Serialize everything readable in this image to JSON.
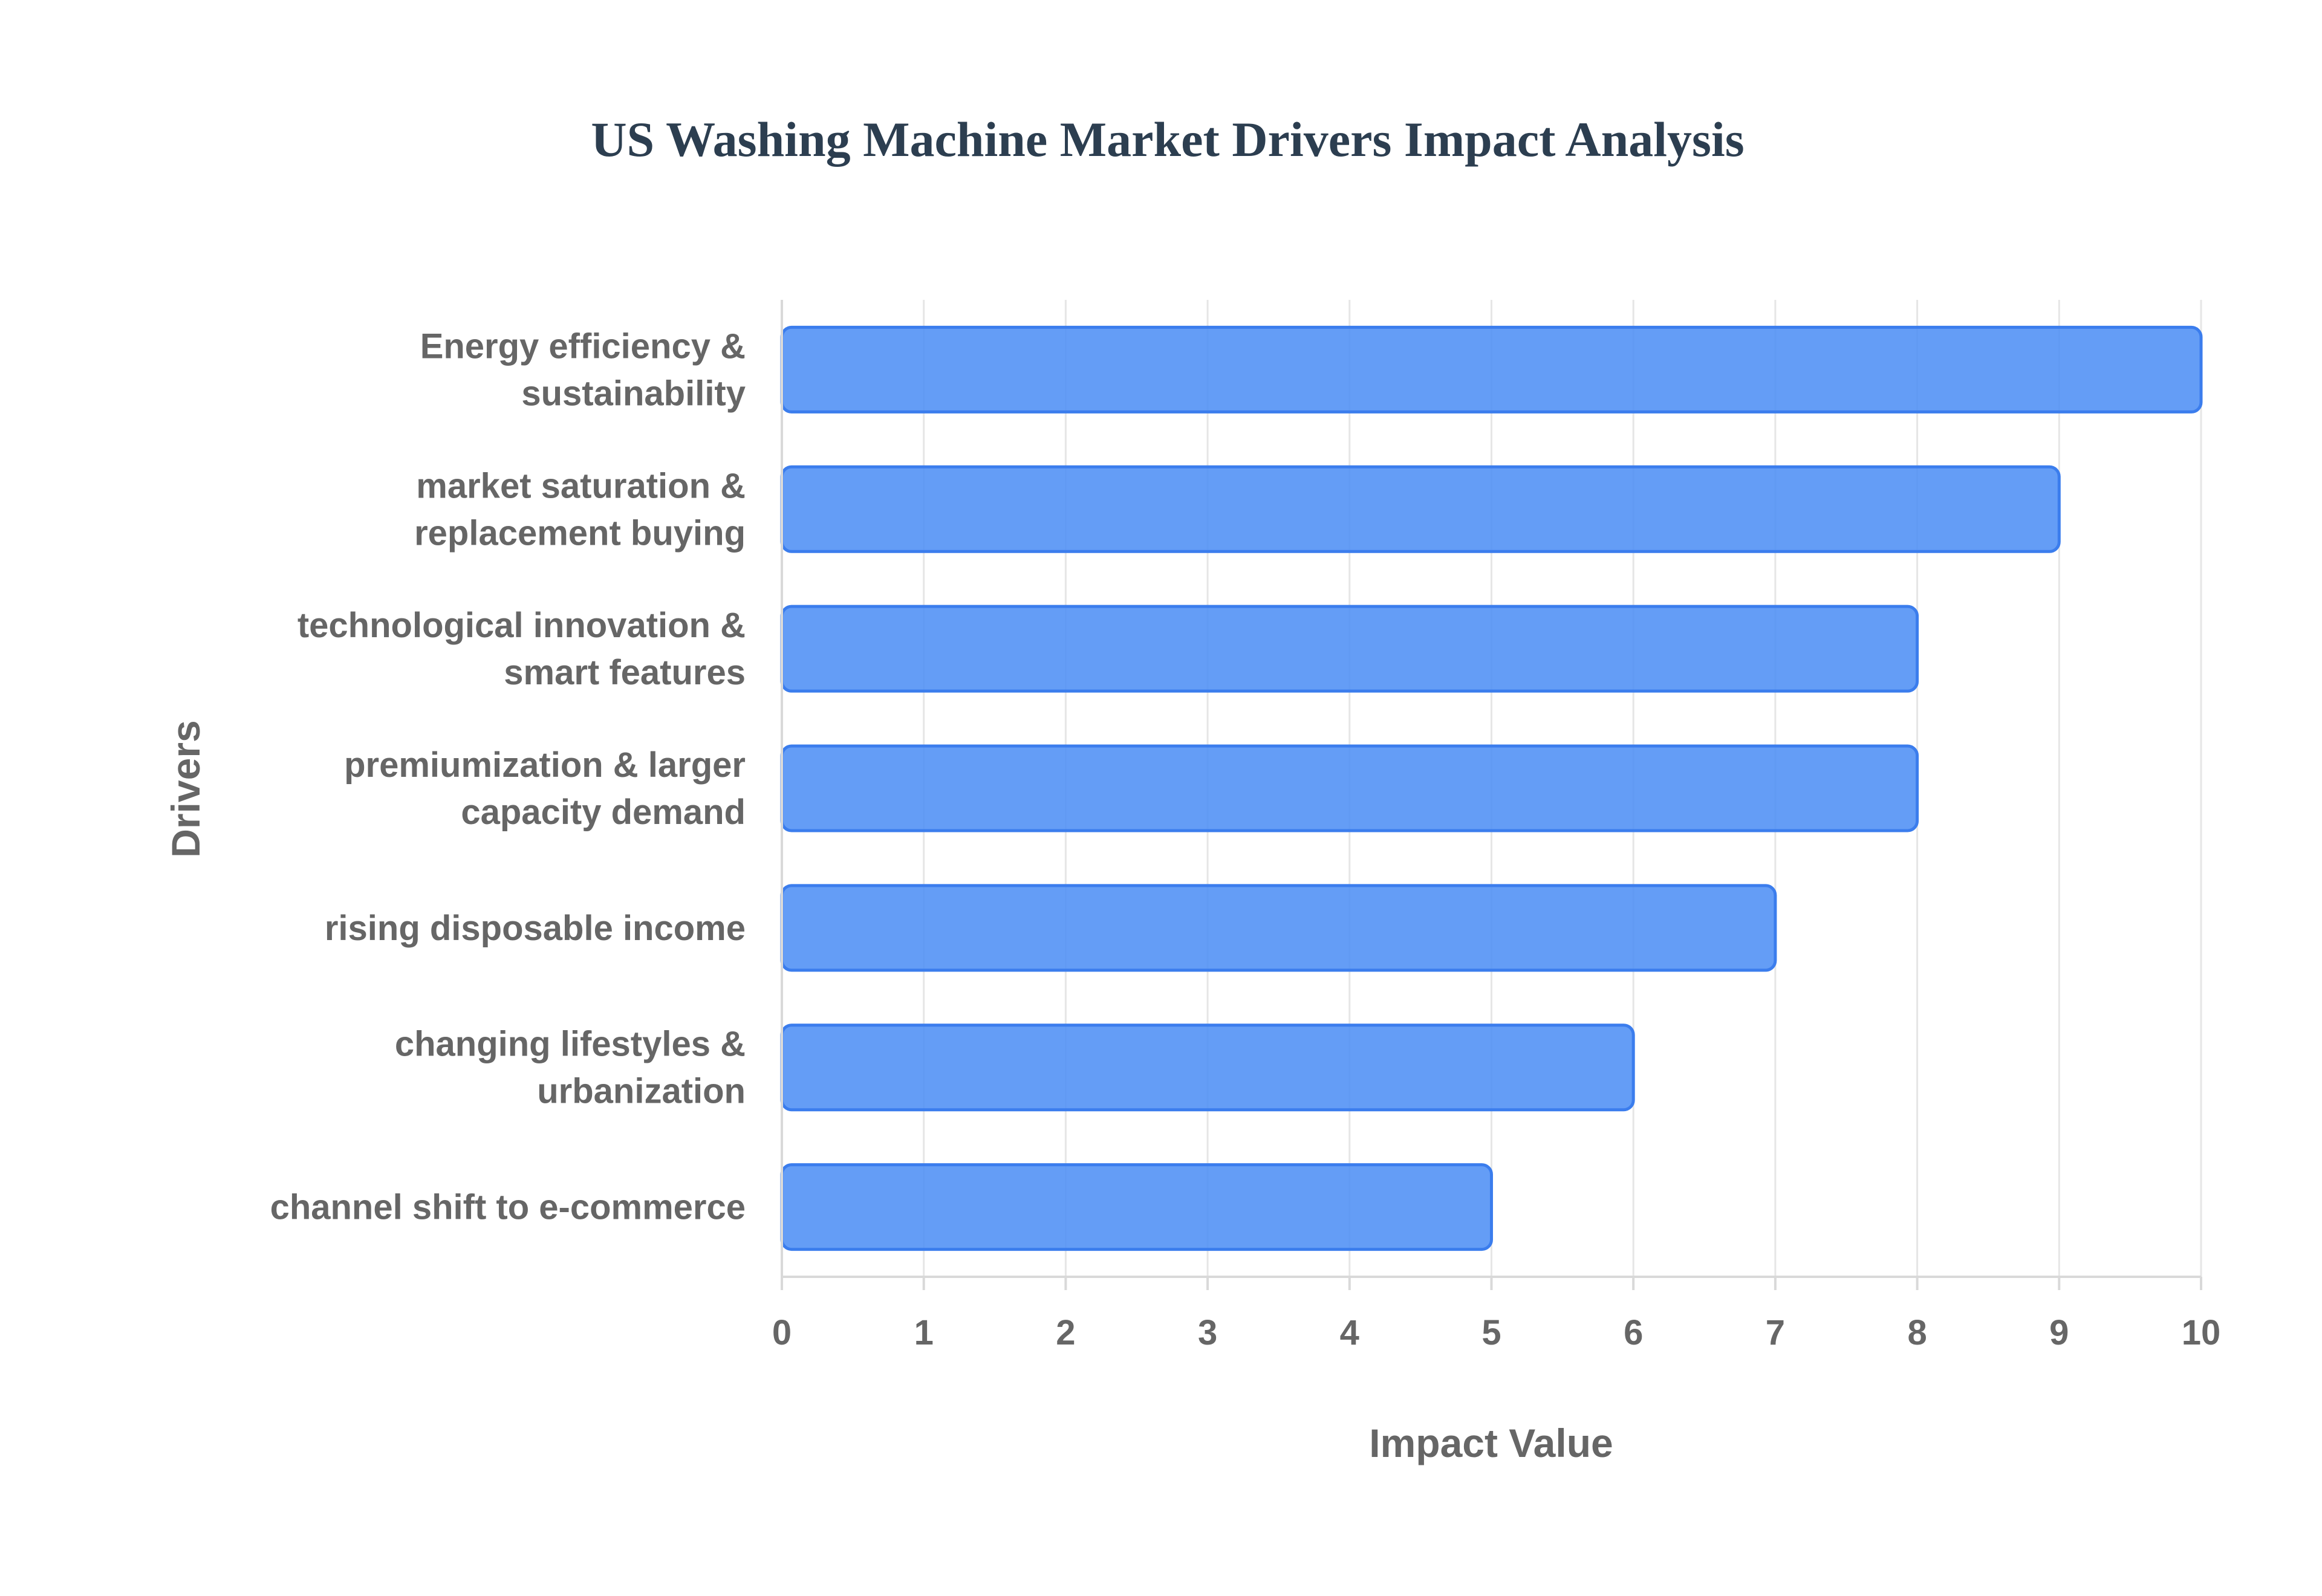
{
  "chart_data": {
    "type": "bar",
    "orientation": "horizontal",
    "title": "US Washing Machine Market Drivers Impact Analysis",
    "xlabel": "Impact Value",
    "ylabel": "Drivers",
    "xlim": [
      0,
      10
    ],
    "x_ticks": [
      "0",
      "1",
      "2",
      "3",
      "4",
      "5",
      "6",
      "7",
      "8",
      "9",
      "10"
    ],
    "grid": true,
    "legend": "none",
    "bar_color": "#4f8ff5",
    "bar_edge_color": "#3b7ded",
    "categories": [
      [
        "Energy efficiency &",
        "sustainability"
      ],
      [
        "market saturation &",
        "replacement buying"
      ],
      [
        "technological innovation &",
        "smart features"
      ],
      [
        "premiumization & larger",
        "capacity demand"
      ],
      [
        "rising disposable income"
      ],
      [
        "changing lifestyles &",
        "urbanization"
      ],
      [
        "channel shift to e-commerce"
      ]
    ],
    "values": [
      10,
      9,
      8,
      8,
      7,
      6,
      5
    ]
  }
}
